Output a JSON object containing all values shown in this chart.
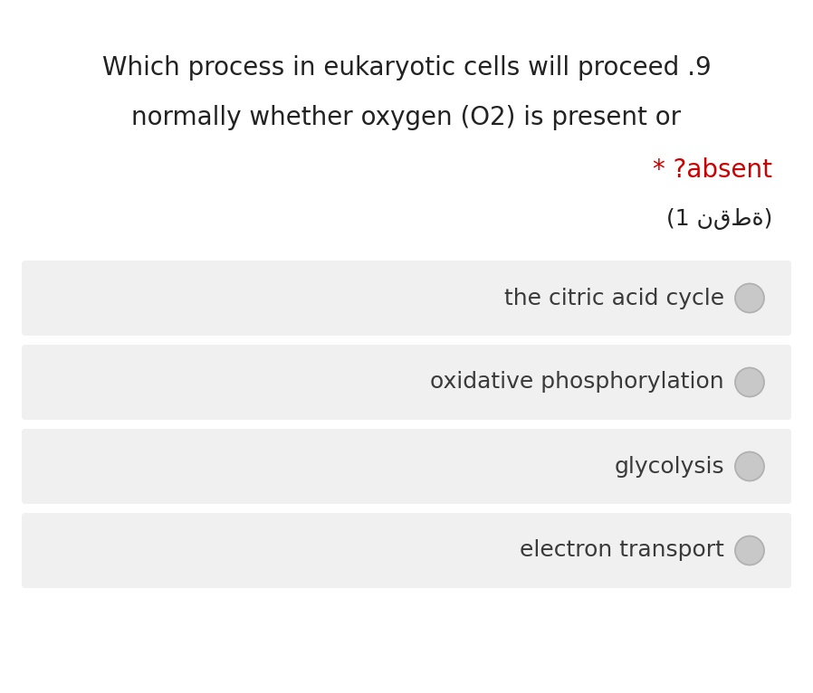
{
  "background_color": "#ffffff",
  "title_line1": "Which process in eukaryotic cells will proceed .9",
  "title_line2": "normally whether oxygen (O2) is present or",
  "title_line3": "* ?absent",
  "title_line4": "(1 نقطة)",
  "title_color": "#222222",
  "title_line3_color": "#cc0000",
  "options": [
    "the citric acid cycle",
    "oxidative phosphorylation",
    "glycolysis",
    "electron transport"
  ],
  "option_box_color": "#f0f0f0",
  "option_text_color": "#3a3a3a",
  "radio_fill_color": "#c8c8c8",
  "radio_edge_color": "#b0b0b0",
  "title_fontsize": 20,
  "option_fontsize": 18,
  "arabic_fontsize": 18,
  "figwidth": 8.98,
  "figheight": 7.66,
  "dpi": 100
}
